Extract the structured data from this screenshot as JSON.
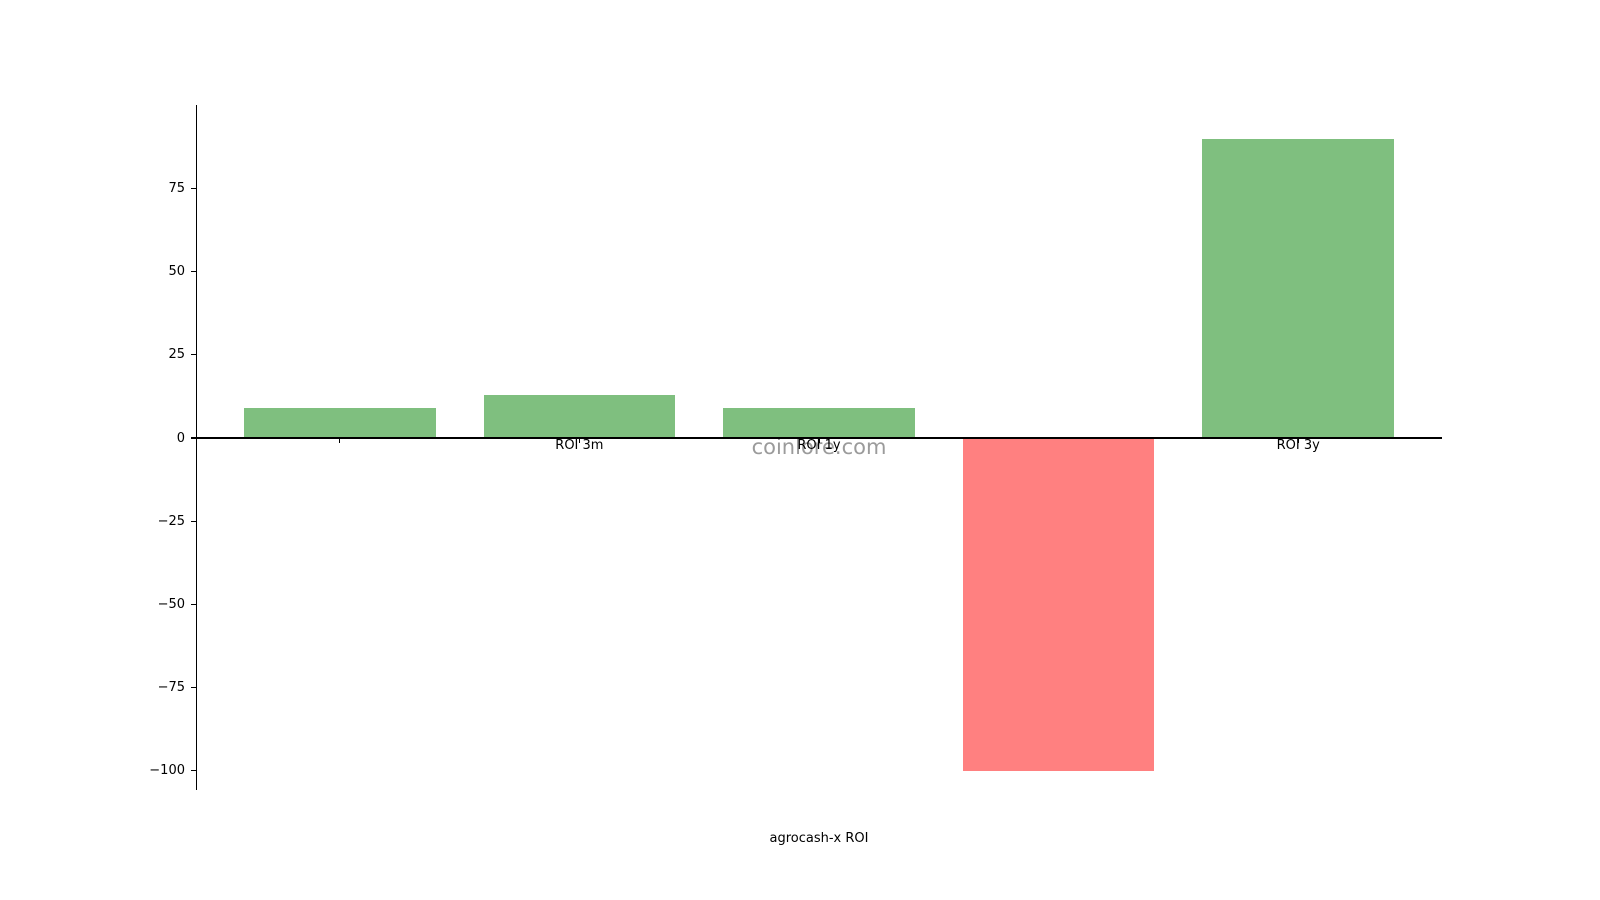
{
  "figure": {
    "watermark": "coinlore.com",
    "title": "agrocash-x ROI"
  },
  "chart_data": {
    "type": "bar",
    "title": "agrocash-x ROI",
    "xlabel": "",
    "ylabel": "",
    "categories": [
      "",
      "ROI 3m",
      "ROI 1y",
      "",
      "ROI 3y"
    ],
    "values": [
      9,
      13,
      9,
      -100,
      90
    ],
    "yticks": [
      75,
      50,
      25,
      0,
      -25,
      -50,
      -75,
      -100
    ],
    "ylim": [
      -105.8,
      100.1
    ],
    "grid": false,
    "legend": false,
    "positive_color": "#7fbf7f",
    "negative_color": "#ff8080",
    "axis_color": "#000000",
    "tick_label_color": "#000000",
    "watermark_text": "coinlore.com",
    "watermark_color": "#9b9b9b",
    "notes": "first and fourth x tick labels not visible; fourth covered by negative bar"
  }
}
